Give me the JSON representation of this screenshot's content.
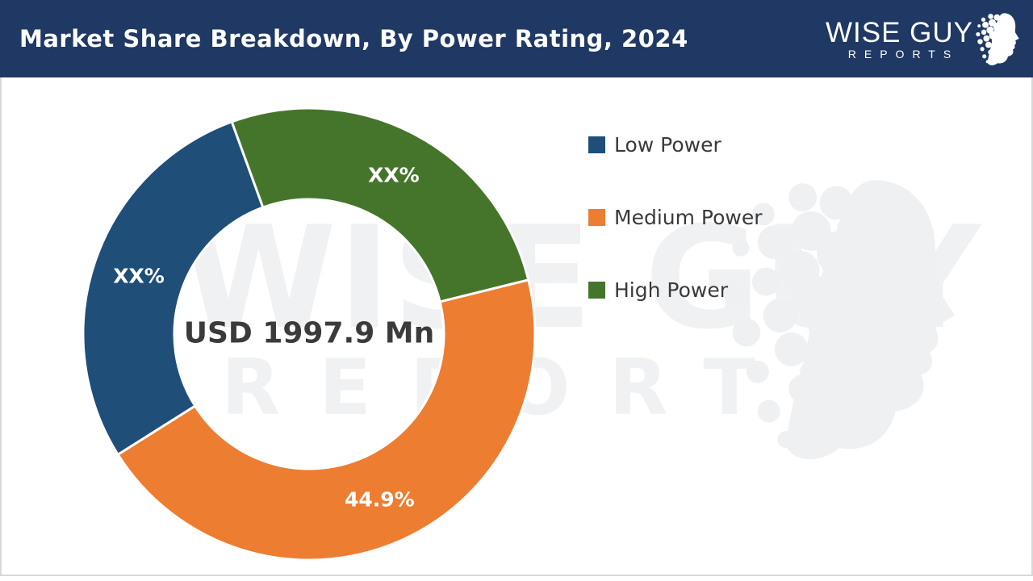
{
  "header": {
    "title": "Market Share Breakdown, By Power Rating, 2024",
    "background_color": "#1f3864",
    "logo": {
      "brand_line1": "WISE GUY",
      "brand_line2": "REPORTS"
    }
  },
  "watermark": {
    "brand_line1": "WISE GUY",
    "brand_line2": "REPORTS"
  },
  "chart_data": {
    "type": "pie",
    "variant": "donut",
    "title": "Market Share Breakdown, By Power Rating, 2024",
    "center_label": "USD 1997.9 Mn",
    "start_angle_deg": 110,
    "direction": "counterclockwise",
    "legend_position": "right",
    "segments": [
      {
        "label": "Low Power",
        "display_label": "XX%",
        "value_pct": 28.4,
        "color": "#1f4e79"
      },
      {
        "label": "Medium Power",
        "display_label": "44.9%",
        "value_pct": 44.9,
        "color": "#ed7d31"
      },
      {
        "label": "High Power",
        "display_label": "XX%",
        "value_pct": 26.7,
        "color": "#45752b"
      }
    ]
  }
}
